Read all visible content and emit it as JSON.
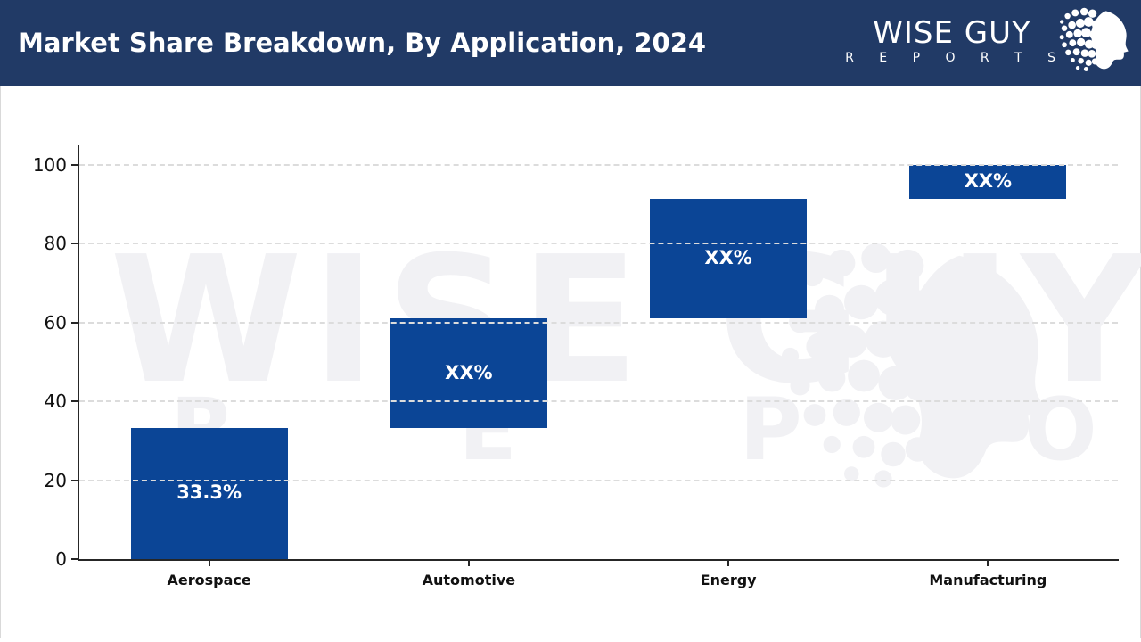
{
  "header": {
    "title": "Market Share Breakdown, By Application, 2024",
    "bg_color": "#213a66",
    "logo": {
      "line1": "WISE GUY",
      "line2": "R E P O R T S"
    }
  },
  "watermark": {
    "line1": "WISE GUY",
    "line2": "R E P O R T S"
  },
  "chart_data": {
    "type": "bar",
    "subtype": "waterfall",
    "title": "Market Share Breakdown, By Application, 2024",
    "categories": [
      "Aerospace",
      "Automotive",
      "Energy",
      "Manufacturing"
    ],
    "segments": [
      {
        "category": "Aerospace",
        "label": "33.3%",
        "start": 0,
        "end": 33.3
      },
      {
        "category": "Automotive",
        "label": "XX%",
        "start": 33.3,
        "end": 61.0
      },
      {
        "category": "Energy",
        "label": "XX%",
        "start": 61.0,
        "end": 91.5
      },
      {
        "category": "Manufacturing",
        "label": "XX%",
        "start": 91.5,
        "end": 100
      }
    ],
    "yticks": [
      0,
      20,
      40,
      60,
      80,
      100
    ],
    "ylim": [
      0,
      105
    ],
    "xlabel": "",
    "ylabel": "",
    "grid": "horizontal-dashed",
    "legend": "none",
    "bar_color": "#0b4596",
    "bar_label_color": "#ffffff",
    "axis_color": "#262626",
    "grid_color": "#dcdcdc"
  }
}
